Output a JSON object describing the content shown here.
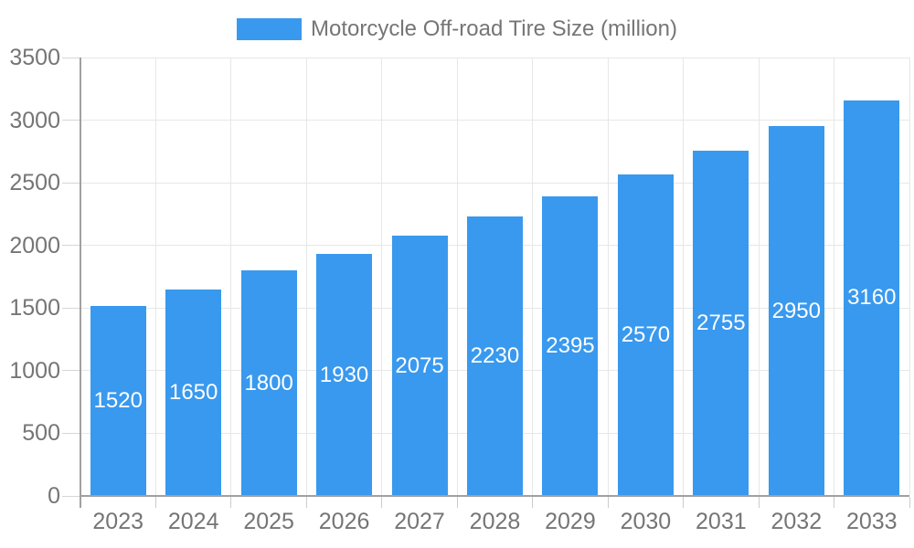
{
  "chart_data": {
    "type": "bar",
    "title": "Motorcycle Off-road Tire Size (million)",
    "categories": [
      "2023",
      "2024",
      "2025",
      "2026",
      "2027",
      "2028",
      "2029",
      "2030",
      "2031",
      "2032",
      "2033"
    ],
    "series": [
      {
        "name": "Motorcycle Off-road Tire Size (million)",
        "values": [
          1520,
          1650,
          1800,
          1930,
          2075,
          2230,
          2395,
          2570,
          2755,
          2950,
          3160
        ]
      }
    ],
    "xlabel": "",
    "ylabel": "",
    "ylim": [
      0,
      3500
    ],
    "y_tick_step": 500,
    "y_tick_labels": [
      "0",
      "500",
      "1000",
      "1500",
      "2000",
      "2500",
      "3000",
      "3500"
    ],
    "grid": "horizontal and vertical",
    "legend_position": "top-center",
    "value_labels": "white, centered inside bars"
  },
  "colors": {
    "bar": "#3999ee",
    "axis_text": "#757575",
    "axis_line": "#a0a0a0",
    "gridline": "#e7e7e7",
    "tick_y": "#d6d6d6",
    "tick_x": "#cccccc",
    "value_label": "#ffffff",
    "background": "#ffffff"
  }
}
